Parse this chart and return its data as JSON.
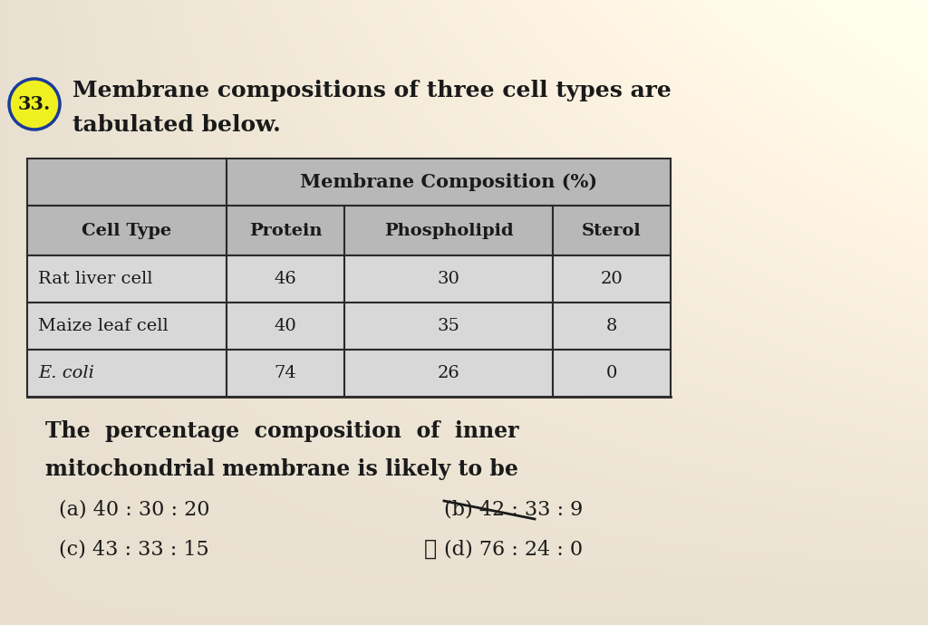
{
  "question_number": "33.",
  "q_line1": "Membrane compositions of three cell types are",
  "q_line2": "tabulated below.",
  "table_header_merged": "Membrane Composition (%)",
  "col_headers": [
    "Cell Type",
    "Protein",
    "Phospholipid",
    "Sterol"
  ],
  "rows": [
    [
      "Rat liver cell",
      "46",
      "30",
      "20"
    ],
    [
      "Maize leaf cell",
      "40",
      "35",
      "8"
    ],
    [
      "E. coli",
      "74",
      "26",
      "0"
    ]
  ],
  "bottom_line1": "The  percentage  composition  of  inner",
  "bottom_line2": "mitochondrial membrane is likely to be",
  "opt_a": "(a) 40 : 30 : 20",
  "opt_b": "(b) 42 : 33 : 9",
  "opt_c": "(c) 43 : 33 : 15",
  "opt_d": "(d) 76 : 24 : 0",
  "page_bg": "#e8e0d0",
  "table_header_bg": "#b8b8b8",
  "table_row_bg": "#d8d8d8",
  "border_color": "#2a2a2a",
  "text_color": "#1a1a1a",
  "circle_fill": "#f0f020",
  "circle_edge": "#1a3a9a"
}
